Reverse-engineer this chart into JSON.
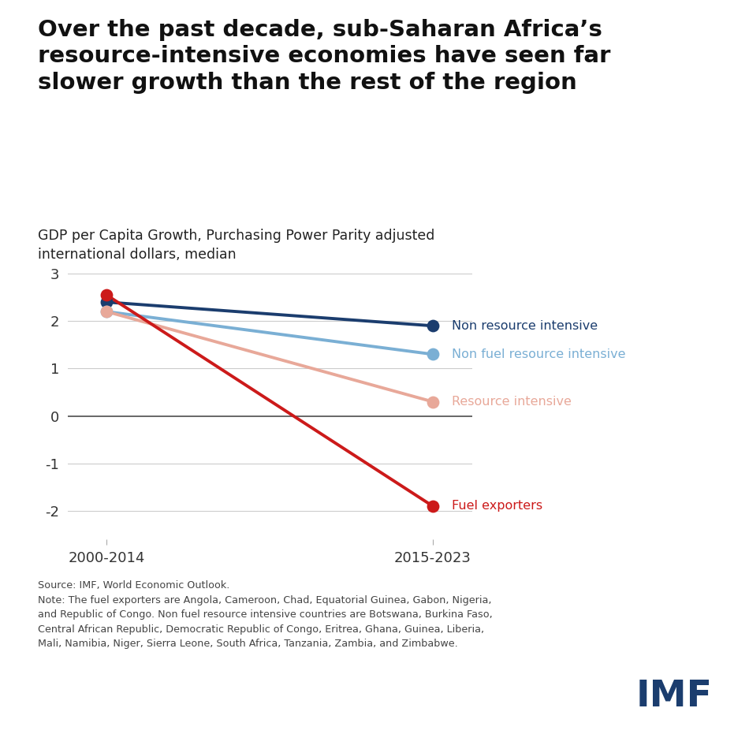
{
  "title": "Over the past decade, sub-Saharan Africa’s\nresource-intensive economies have seen far\nslower growth than the rest of the region",
  "subtitle": "GDP per Capita Growth, Purchasing Power Parity adjusted\ninternational dollars, median",
  "x_labels": [
    "2000-2014",
    "2015-2023"
  ],
  "series": [
    {
      "label": "Non resource intensive",
      "color": "#1b3d6e",
      "values": [
        2.4,
        1.9
      ]
    },
    {
      "label": "Non fuel resource intensive",
      "color": "#7aafd4",
      "values": [
        2.2,
        1.3
      ]
    },
    {
      "label": "Resource intensive",
      "color": "#e8a899",
      "values": [
        2.2,
        0.3
      ]
    },
    {
      "label": "Fuel exporters",
      "color": "#cc1a1a",
      "values": [
        2.55,
        -1.9
      ]
    }
  ],
  "ylim": [
    -2.6,
    3.4
  ],
  "yticks": [
    -2,
    -1,
    0,
    1,
    2,
    3
  ],
  "source_text": "Source: IMF, World Economic Outlook.\nNote: The fuel exporters are Angola, Cameroon, Chad, Equatorial Guinea, Gabon, Nigeria,\nand Republic of Congo. Non fuel resource intensive countries are Botswana, Burkina Faso,\nCentral African Republic, Democratic Republic of Congo, Eritrea, Ghana, Guinea, Liberia,\nMali, Namibia, Niger, Sierra Leone, South Africa, Tanzania, Zambia, and Zimbabwe.",
  "imf_color": "#1b3d6e",
  "background_color": "#ffffff",
  "zero_line_color": "#666666",
  "grid_color": "#cccccc",
  "marker_size": 130
}
